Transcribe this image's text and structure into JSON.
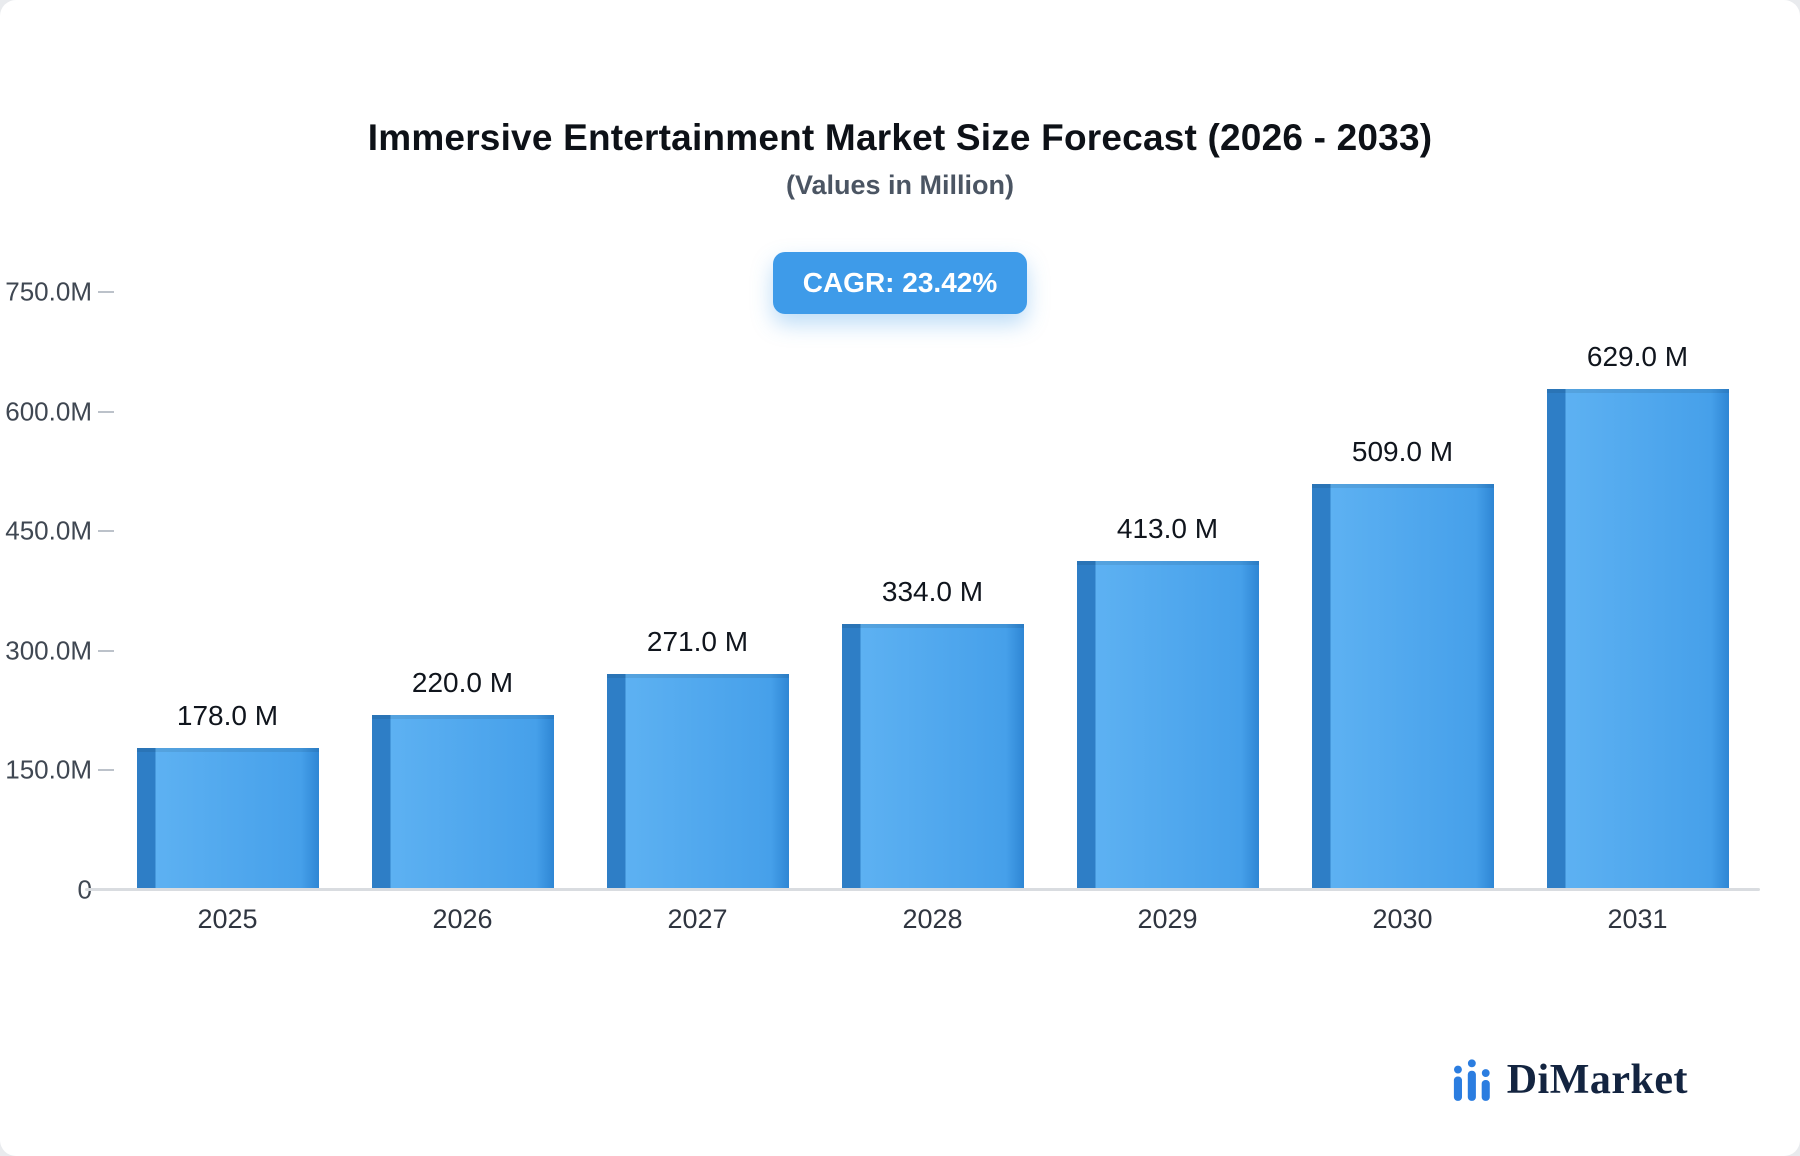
{
  "header": {
    "title": "Immersive Entertainment Market Size Forecast (2026 - 2033)",
    "subtitle": "(Values in Million)",
    "cagr_badge": "CAGR: 23.42%"
  },
  "chart_data": {
    "type": "bar",
    "title": "Immersive Entertainment Market Size Forecast (2026 - 2033)",
    "subtitle": "(Values in Million)",
    "cagr": "23.42%",
    "categories": [
      "2025",
      "2026",
      "2027",
      "2028",
      "2029",
      "2030",
      "2031"
    ],
    "values": [
      178.0,
      220.0,
      271.0,
      334.0,
      413.0,
      509.0,
      629.0
    ],
    "value_labels": [
      "178.0 M",
      "220.0 M",
      "271.0 M",
      "334.0 M",
      "413.0 M",
      "509.0 M",
      "629.0 M"
    ],
    "unit": "Million",
    "ylim": [
      0,
      750
    ],
    "ytick_labels": [
      "0",
      "150.0M",
      "300.0M",
      "450.0M",
      "600.0M",
      "750.0M"
    ],
    "grid": false,
    "legend": false,
    "xlabel": "",
    "ylabel": ""
  },
  "branding": {
    "logo_text": "DiMarket"
  },
  "colors": {
    "bar_main": "#46A0EA",
    "bar_light": "#5DB1F2",
    "bar_dark": "#2E7EC6",
    "badge_bg": "#3E9BE9",
    "title": "#0d1117",
    "subtitle": "#4b5563",
    "axis_text": "#3f4752",
    "value_text": "#10151d",
    "baseline": "#d9dce0",
    "logo_text": "#132440",
    "logo_icon": "#2B7DE0"
  }
}
